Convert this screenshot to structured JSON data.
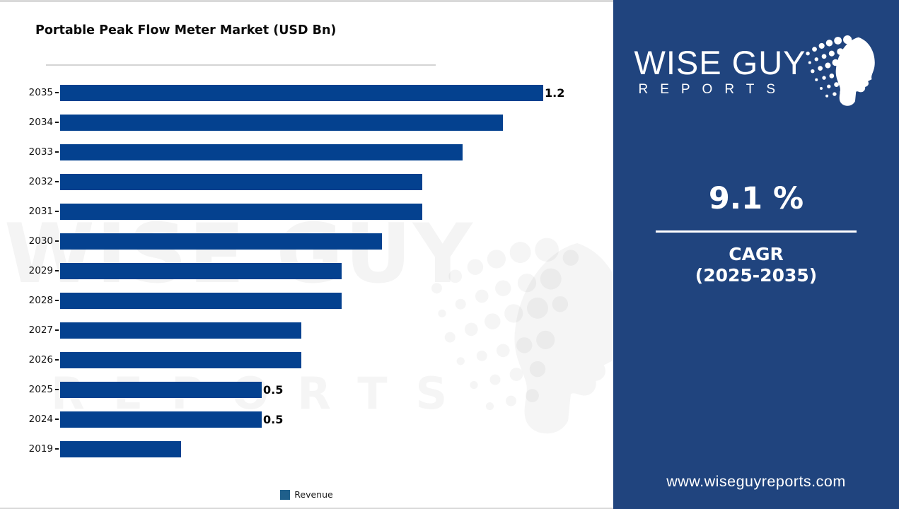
{
  "chart": {
    "title": "Portable Peak Flow Meter Market (USD Bn)",
    "legend_label": "Revenue",
    "bar_color": "#04418f",
    "legend_swatch_color": "#1f5f8b"
  },
  "chart_data": {
    "type": "bar",
    "orientation": "horizontal",
    "title": "Portable Peak Flow Meter Market (USD Bn)",
    "categories": [
      "2035",
      "2034",
      "2033",
      "2032",
      "2031",
      "2030",
      "2029",
      "2028",
      "2027",
      "2026",
      "2025",
      "2024",
      "2019"
    ],
    "values": [
      1.2,
      1.1,
      1.0,
      0.9,
      0.9,
      0.8,
      0.7,
      0.7,
      0.6,
      0.6,
      0.5,
      0.5,
      0.3
    ],
    "data_labels": {
      "2035": "1.2",
      "2025": "0.5",
      "2024": "0.5"
    },
    "xlabel": "",
    "ylabel": "",
    "xlim": [
      0,
      1.37
    ],
    "grid": false,
    "legend": [
      "Revenue"
    ],
    "legend_position": "bottom-center",
    "bar_color": "#04418f"
  },
  "watermark": {
    "line1": "WISE GUY",
    "line2": "REPORTS"
  },
  "sidebar": {
    "background_color": "#20447e",
    "brand_line1": "WISE GUY",
    "brand_line2": "REPORTS",
    "cagr_value": "9.1 %",
    "cagr_label_line1": "CAGR",
    "cagr_label_line2": "(2025-2035)",
    "website": "www.wiseguyreports.com"
  }
}
